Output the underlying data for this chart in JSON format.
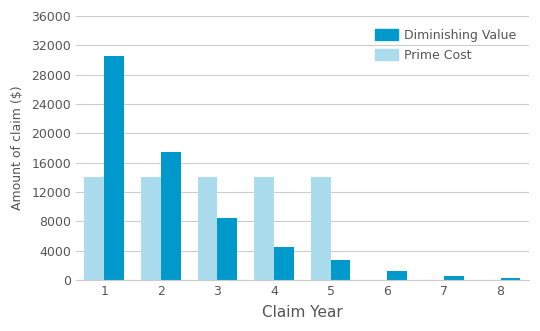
{
  "claim_years": [
    1,
    2,
    3,
    4,
    5,
    6,
    7,
    8
  ],
  "diminishing_value": [
    30500,
    17500,
    8500,
    4500,
    2800,
    1200,
    600,
    300
  ],
  "prime_cost": [
    14000,
    14000,
    14000,
    14000,
    14000,
    0,
    0,
    0
  ],
  "dv_color": "#0099cc",
  "pc_color": "#aadcee",
  "ylabel": "Amount of claim ($)",
  "xlabel": "Claim Year",
  "ylim": [
    0,
    36000
  ],
  "yticks": [
    0,
    4000,
    8000,
    12000,
    16000,
    20000,
    24000,
    28000,
    32000,
    36000
  ],
  "legend_dv": "Diminishing Value",
  "legend_pc": "Prime Cost",
  "bar_width": 0.35,
  "grid_color": "#cccccc",
  "background_color": "#ffffff",
  "text_color": "#555555",
  "xlabel_fontsize": 11,
  "ylabel_fontsize": 9,
  "tick_fontsize": 9
}
